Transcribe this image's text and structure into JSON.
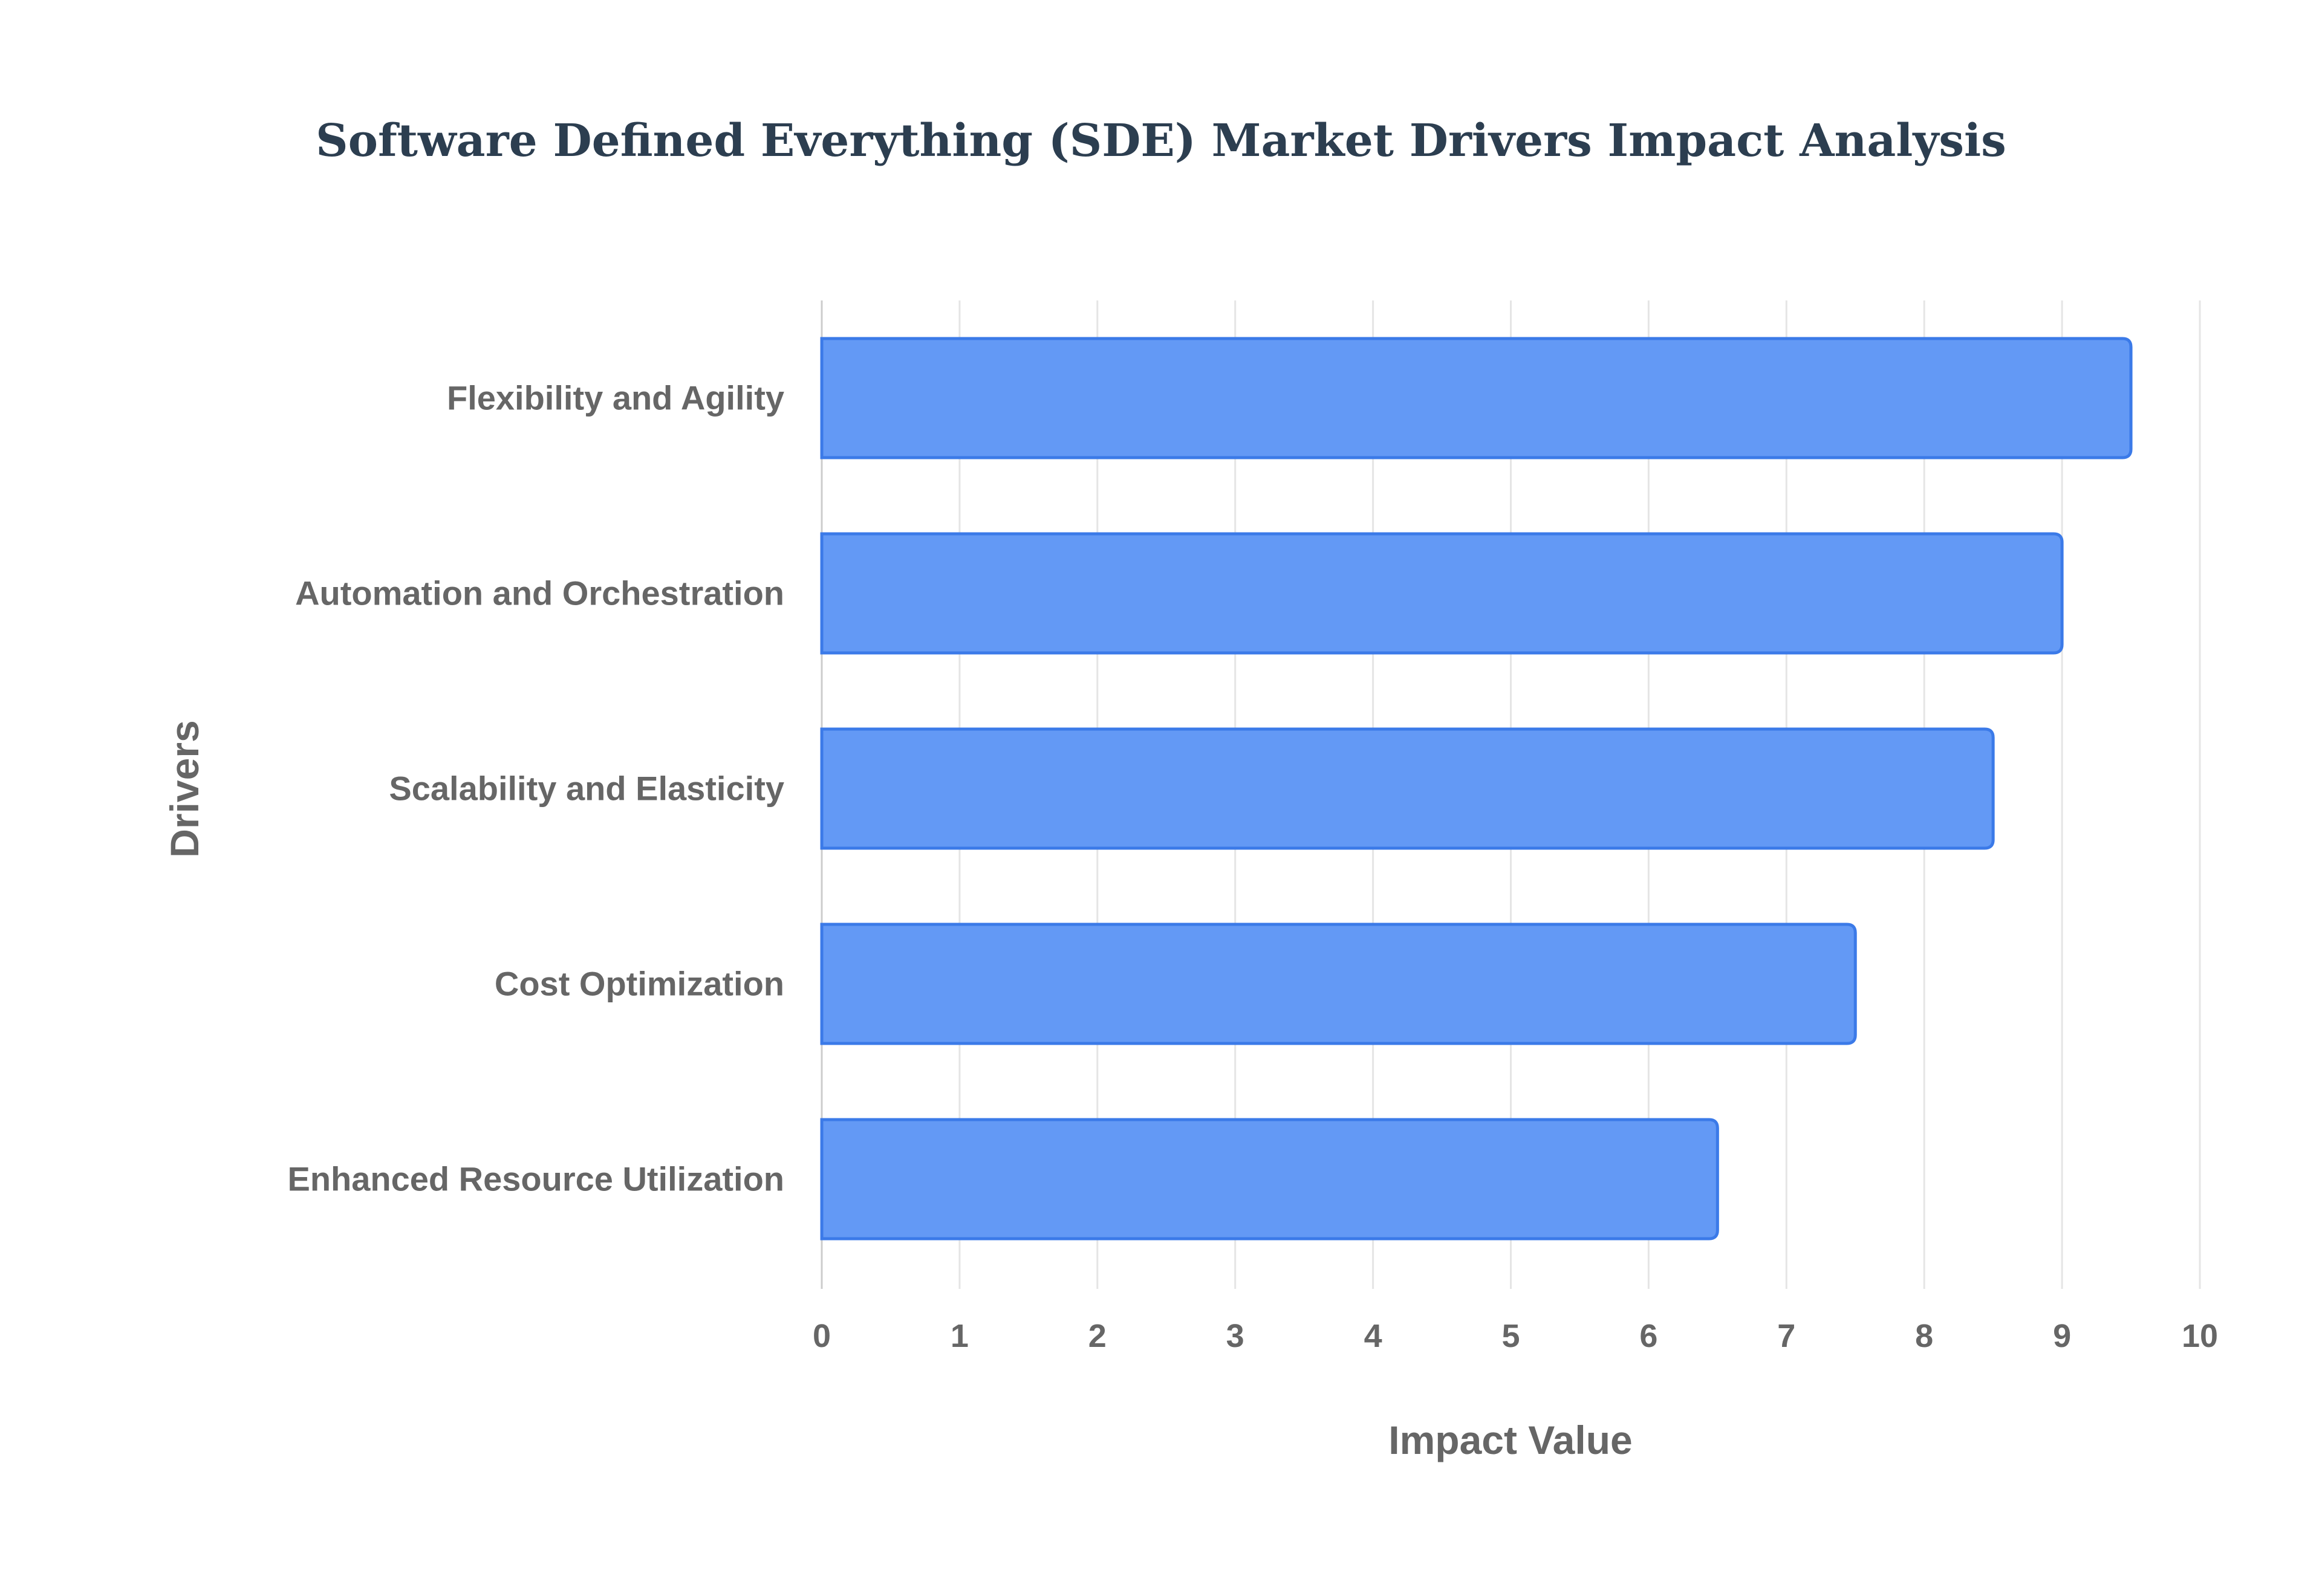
{
  "chart_data": {
    "type": "bar",
    "orientation": "horizontal",
    "title": "Software Defined Everything (SDE) Market Drivers Impact Analysis",
    "xlabel": "Impact Value",
    "ylabel": "Drivers",
    "categories": [
      "Flexibility and Agility",
      "Automation and Orchestration",
      "Scalability and Elasticity",
      "Cost Optimization",
      "Enhanced Resource Utilization"
    ],
    "values": [
      9.5,
      9.0,
      8.5,
      7.5,
      6.5
    ],
    "xlim": [
      0,
      10
    ],
    "xticks": [
      "0",
      "1",
      "2",
      "3",
      "4",
      "5",
      "6",
      "7",
      "8",
      "9",
      "10"
    ],
    "grid": true,
    "legend": "none",
    "colors": {
      "bar_fill": "#6399f5",
      "bar_border": "#3b7ae8",
      "grid": "#e5e5e5",
      "text": "#666666",
      "title": "#2c3e50"
    }
  }
}
